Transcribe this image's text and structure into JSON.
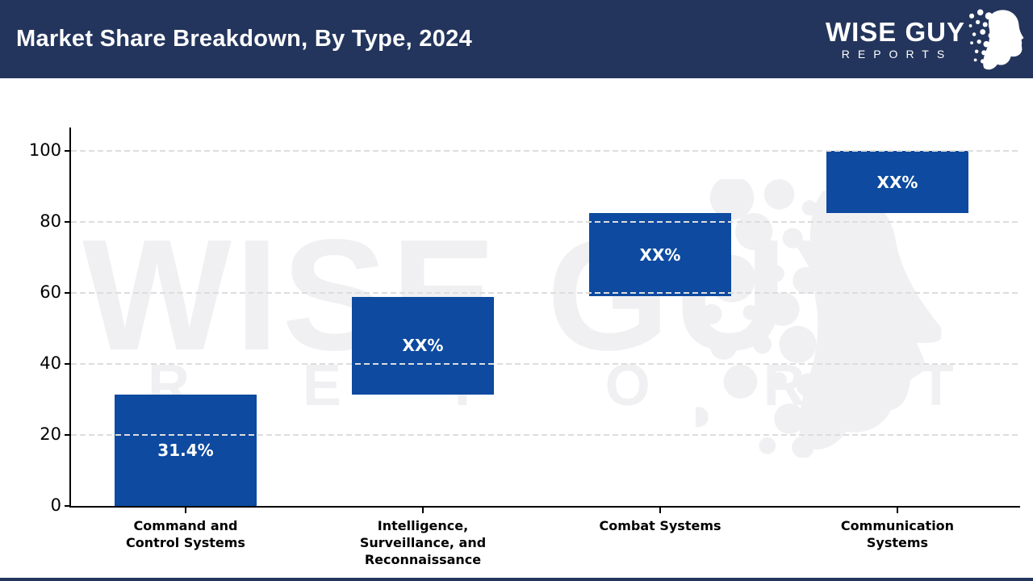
{
  "header": {
    "title": "Market Share Breakdown, By Type, 2024",
    "brand": {
      "name": "WISE GUY",
      "sub": "REPORTS"
    }
  },
  "watermark": {
    "main": "WISE GUY",
    "sub": "R E P O R T S"
  },
  "colors": {
    "header_bg": "#23355C",
    "footer_bg": "#23355C",
    "bar": "#0D4AA0",
    "bar_label": "#FFFFFF",
    "grid": "#DDDDDD",
    "axis": "#000000",
    "watermark": "#F0F0F2"
  },
  "chart_data": {
    "type": "bar",
    "subtype": "floating-waterfall",
    "title": "Market Share Breakdown, By Type, 2024",
    "categories": [
      "Command and Control Systems",
      "Intelligence, Surveillance, and Reconnaissance",
      "Combat Systems",
      "Communication Systems"
    ],
    "category_label_lines": [
      [
        "Command and",
        "Control Systems"
      ],
      [
        "Intelligence,",
        "Surveillance, and",
        "Reconnaissance"
      ],
      [
        "Combat Systems"
      ],
      [
        "Communication",
        "Systems"
      ]
    ],
    "segments": [
      {
        "category": "Command and Control Systems",
        "start": 0,
        "end": 31.4,
        "label": "31.4%"
      },
      {
        "category": "Intelligence, Surveillance, and Reconnaissance",
        "start": 31.4,
        "end": 58.9,
        "label": "XX%"
      },
      {
        "category": "Combat Systems",
        "start": 59,
        "end": 82.5,
        "label": "XX%"
      },
      {
        "category": "Communication Systems",
        "start": 82.5,
        "end": 100,
        "label": "XX%"
      }
    ],
    "xlabel": "",
    "ylabel": "",
    "ylim": [
      0,
      100
    ],
    "yticks": [
      0,
      20,
      40,
      60,
      80,
      100
    ],
    "grid": "horizontal-dashed",
    "legend": "none",
    "bar_color": "#0D4AA0"
  }
}
